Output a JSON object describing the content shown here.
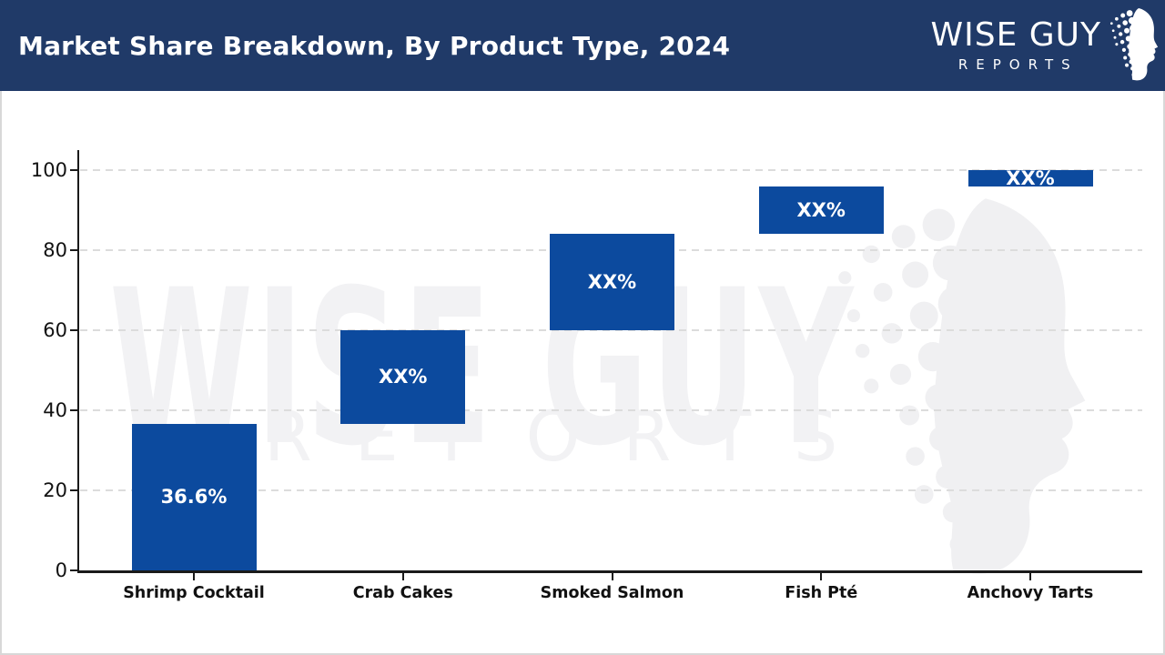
{
  "header": {
    "title": "Market Share Breakdown, By Product Type, 2024",
    "logo": {
      "line1": "WISE GUY",
      "line2": "REPORTS"
    }
  },
  "watermark": {
    "line1": "WISE GUY",
    "line2": "REPORTS"
  },
  "chart_data": {
    "type": "bar",
    "subtype": "waterfall",
    "title": "Market Share Breakdown, By Product Type, 2024",
    "categories": [
      "Shrimp Cocktail",
      "Crab Cakes",
      "Smoked Salmon",
      "Fish Pté",
      "Anchovy Tarts"
    ],
    "segments": [
      {
        "category": "Shrimp Cocktail",
        "start": 0,
        "end": 36.6,
        "value": 36.6,
        "label": "36.6%"
      },
      {
        "category": "Crab Cakes",
        "start": 36.6,
        "end": 60,
        "value": 23.4,
        "label": "XX%"
      },
      {
        "category": "Smoked Salmon",
        "start": 60,
        "end": 84,
        "value": 24,
        "label": "XX%"
      },
      {
        "category": "Fish Pté",
        "start": 84,
        "end": 96,
        "value": 12,
        "label": "XX%"
      },
      {
        "category": "Anchovy Tarts",
        "start": 96,
        "end": 100,
        "value": 4,
        "label": "XX%"
      }
    ],
    "xlabel": "",
    "ylabel": "",
    "ylim": [
      0,
      100
    ],
    "yticks": [
      0,
      20,
      40,
      60,
      80,
      100
    ],
    "grid": "dashed-horizontal",
    "legend": "none",
    "bar_color": "#0c4a9e",
    "bar_label_color": "#ffffff"
  },
  "colors": {
    "header_bg": "#203a68",
    "bar": "#0c4a9e",
    "axis": "#1a1a1a",
    "gridline": "#dcdcdc",
    "watermark": "#f2f2f4",
    "page_border": "#d8d8d8"
  }
}
